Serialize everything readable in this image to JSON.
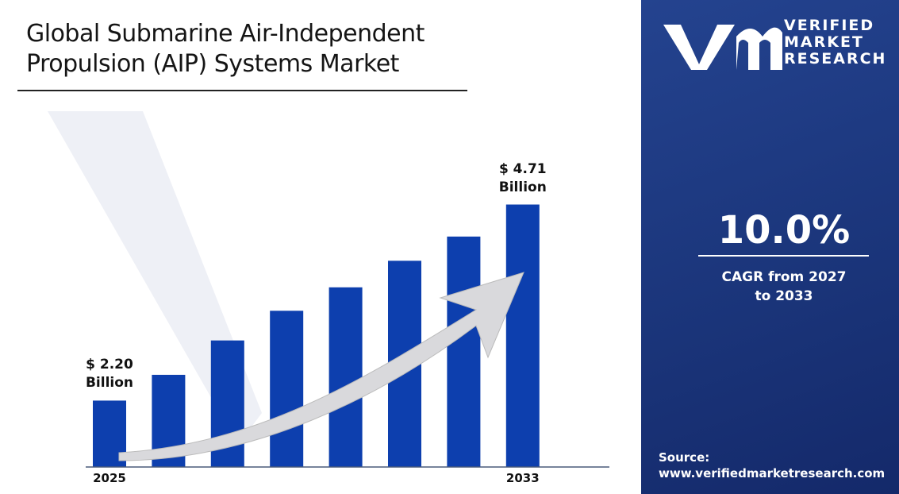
{
  "chart_data": {
    "type": "bar",
    "title": "Global Submarine Air-Independent Propulsion (AIP) Systems Market",
    "categories": [
      "2025",
      null,
      null,
      null,
      null,
      null,
      null,
      "2033"
    ],
    "values": [
      2.2,
      2.53,
      2.97,
      3.35,
      3.65,
      3.99,
      4.3,
      4.71
    ],
    "value_labels": [
      "$ 2.20 Billion",
      null,
      null,
      null,
      null,
      null,
      null,
      "$ 4.71 Billion"
    ],
    "color": "#0d3fae",
    "ylim": [
      1.35,
      5
    ]
  },
  "sidebar": {
    "logo": [
      "VERIFIED",
      "MARKET",
      "RESEARCH"
    ],
    "cagr": "10.0%",
    "cagr_label": "CAGR from 2027 to 2033",
    "source_label": "Source:",
    "source_url": "www.verifiedmarketresearch.com"
  }
}
